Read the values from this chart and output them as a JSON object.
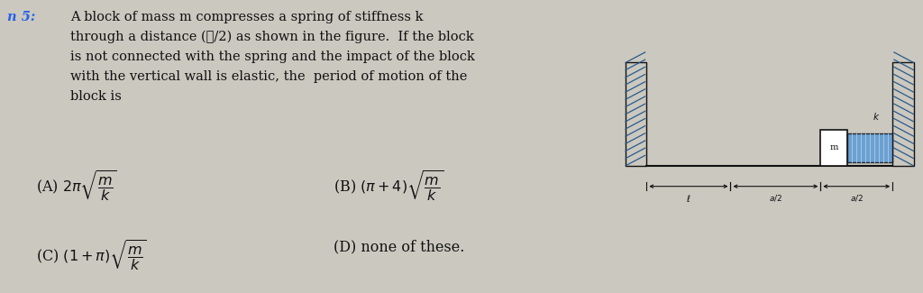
{
  "background_color": "#cbc8c0",
  "question_number": "n 5:",
  "question_number_color": "#2563eb",
  "question_text_line1": "A block of mass m compresses a spring of stiffness k",
  "question_text_line2": "through a distance (ℓ/2) as shown in the figure.  If the block",
  "question_text_line3": "is not connected with the spring and the impact of the block",
  "question_text_line4": "with the vertical wall is elastic, the  period of motion of the",
  "question_text_line5": "block is",
  "text_color": "#111111",
  "fig_bg": "#c8c5be",
  "fig_width": 10.24,
  "fig_height": 3.25,
  "option_A": "(A) $2\\pi\\sqrt{\\dfrac{m}{k}}$",
  "option_B": "(B) $(\\pi+4)\\sqrt{\\dfrac{m}{k}}$",
  "option_C": "(C) $(1+\\pi)\\sqrt{\\dfrac{m}{k}}$",
  "option_D": "(D) none of these.",
  "spring_color": "#5b9bd5",
  "wall_hatch_color": "#2a5a8a",
  "dim_label_l": "$\\ell$",
  "dim_label_a1": "$a/2$",
  "dim_label_a2": "$a/2$",
  "k_label": "$k$"
}
